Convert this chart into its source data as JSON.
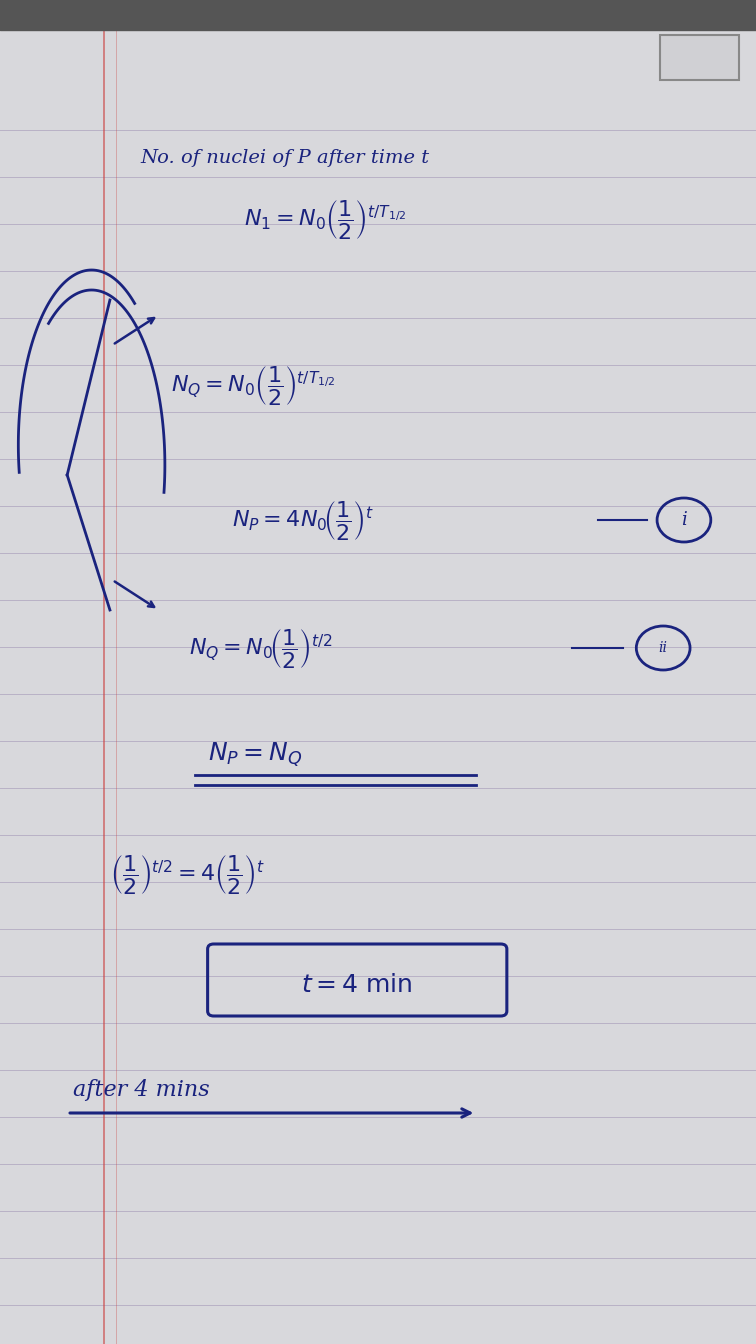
{
  "bg_color": "#d8d8dc",
  "paper_color": "#e4e4e8",
  "line_color": "#b0a8c0",
  "red_margin": "#cc4444",
  "ink_color": "#1a237e",
  "title_text": "No. of nuclei of P after time t",
  "eq_N1": "$N_1 = N_0\\left(\\dfrac{1}{2}\\right)^{t/T_{1/2}}$",
  "eq_NQ_brace": "$N_Q = N_0\\left(\\dfrac{1}{2}\\right)^{t/T_{1/2}}$",
  "eq_NP": "$N_P = 4N_0\\left(\\dfrac{1}{2}\\right)^{t}$",
  "eq_NQ2": "$N_Q = N_0\\left(\\dfrac{1}{2}\\right)^{t/2}$",
  "eq_equal": "$N_P = N_Q$",
  "eq_step": "$\\left(\\dfrac{1}{2}\\right)^{t/2} = 4\\left(\\dfrac{1}{2}\\right)^{t}$",
  "eq_boxed": "$t = 4\\ \\mathrm{min}$",
  "final_text": "after 4 mins",
  "fig_w": 7.56,
  "fig_h": 13.44,
  "dpi": 100
}
